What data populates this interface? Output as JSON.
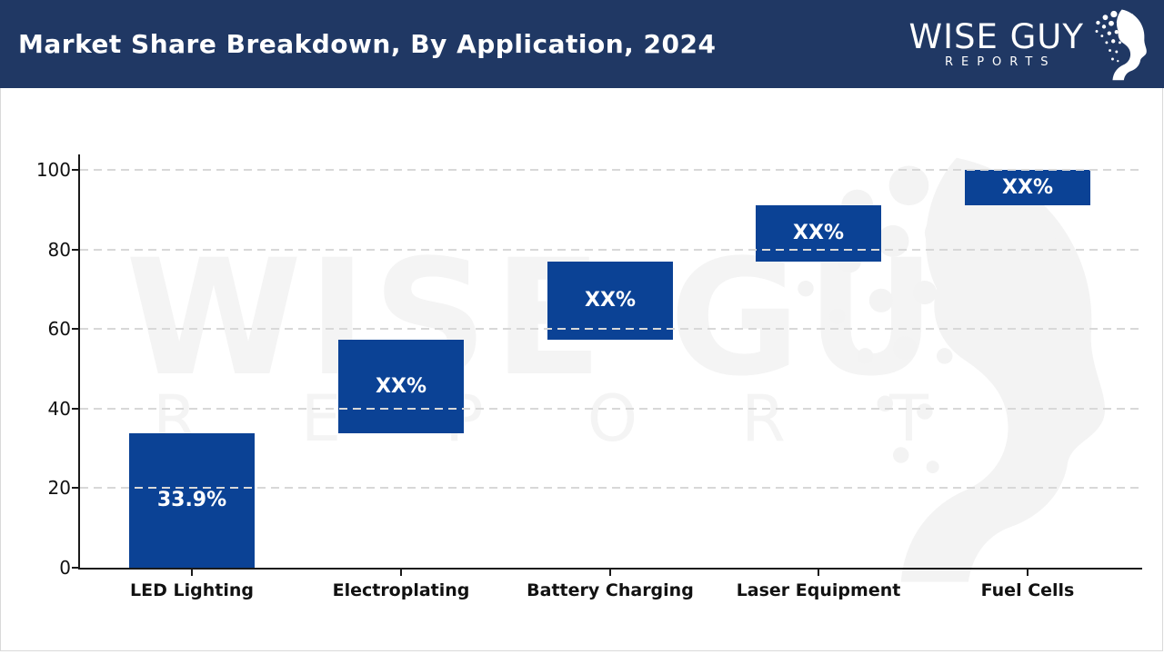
{
  "header": {
    "bg_color": "#203864",
    "title": "Market Share Breakdown, By Application, 2024",
    "logo": {
      "line1": "WISE GUY",
      "line2": "REPORTS"
    }
  },
  "watermark": {
    "line1": "WISE GUY",
    "line2": "R E P O R T S"
  },
  "chart_data": {
    "type": "bar",
    "subtype": "waterfall",
    "title": "Market Share Breakdown, By Application, 2024",
    "xlabel": "",
    "ylabel": "",
    "ylim": [
      0,
      100
    ],
    "y_ticks": [
      0,
      20,
      40,
      60,
      80,
      100
    ],
    "grid": "horizontal-dashed",
    "legend": "none",
    "bar_color": "#0b4295",
    "bar_label_color": "#ffffff",
    "categories": [
      "LED Lighting",
      "Electroplating",
      "Battery Charging",
      "Laser Equipment",
      "Fuel Cells"
    ],
    "bars": [
      {
        "category": "LED Lighting",
        "label": "33.9%",
        "start": 0,
        "end": 33.9,
        "value": 33.9
      },
      {
        "category": "Electroplating",
        "label": "XX%",
        "start": 33.9,
        "end": 57.3,
        "value": 23.4
      },
      {
        "category": "Battery Charging",
        "label": "XX%",
        "start": 57.3,
        "end": 77.0,
        "value": 19.7
      },
      {
        "category": "Laser Equipment",
        "label": "XX%",
        "start": 77.0,
        "end": 91.1,
        "value": 14.1
      },
      {
        "category": "Fuel Cells",
        "label": "XX%",
        "start": 91.1,
        "end": 100.0,
        "value": 8.9
      }
    ]
  }
}
